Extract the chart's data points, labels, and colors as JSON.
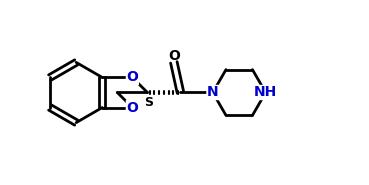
{
  "bg_color": "#ffffff",
  "line_color": "#000000",
  "blue_color": "#0000cc",
  "line_width": 2.0,
  "font_size": 10,
  "figsize": [
    3.69,
    1.85
  ],
  "dpi": 100,
  "xlim": [
    0,
    10
  ],
  "ylim": [
    0,
    5
  ]
}
